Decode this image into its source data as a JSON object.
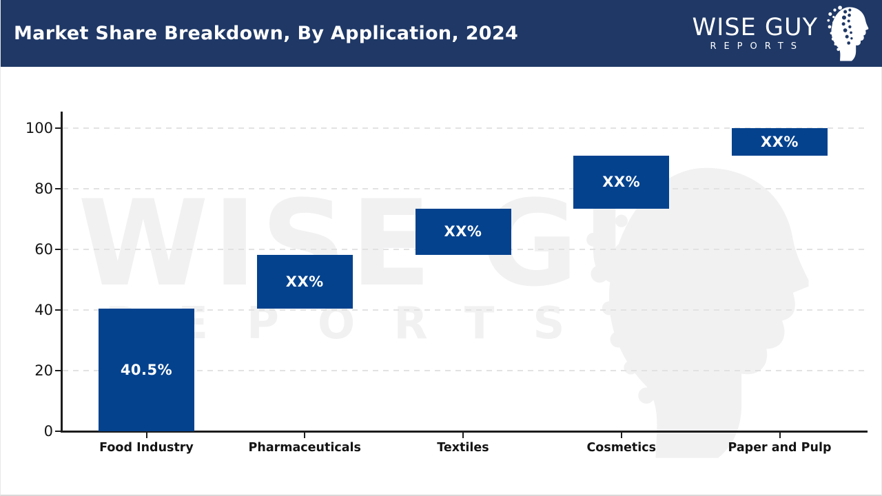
{
  "header": {
    "title": "Market Share Breakdown, By Application, 2024",
    "bg_color": "#1f3866",
    "logo": {
      "line1": "WISE GUY",
      "line2": "REPORTS"
    }
  },
  "watermark": {
    "line1": "WISE GUY",
    "line2": "REPORTS"
  },
  "chart_data": {
    "type": "bar",
    "subtype": "waterfall",
    "title": "Market Share Breakdown, By Application, 2024",
    "xlabel": "",
    "ylabel": "",
    "ylim": [
      0,
      100
    ],
    "yticks": [
      0,
      20,
      40,
      60,
      80,
      100
    ],
    "grid": "dashed-horizontal",
    "legend": "none",
    "bar_color": "#04428e",
    "label_color": "#ffffff",
    "categories": [
      "Food Industry",
      "Pharmaceuticals",
      "Textiles",
      "Cosmetics",
      "Paper and Pulp"
    ],
    "segments": [
      {
        "category": "Food Industry",
        "start": 0,
        "end": 40.5,
        "label": "40.5%"
      },
      {
        "category": "Pharmaceuticals",
        "start": 40.5,
        "end": 58.2,
        "label": "XX%"
      },
      {
        "category": "Textiles",
        "start": 58.2,
        "end": 73.4,
        "label": "XX%"
      },
      {
        "category": "Cosmetics",
        "start": 73.4,
        "end": 91.0,
        "label": "XX%"
      },
      {
        "category": "Paper and Pulp",
        "start": 91.0,
        "end": 100.0,
        "label": "XX%"
      }
    ]
  }
}
